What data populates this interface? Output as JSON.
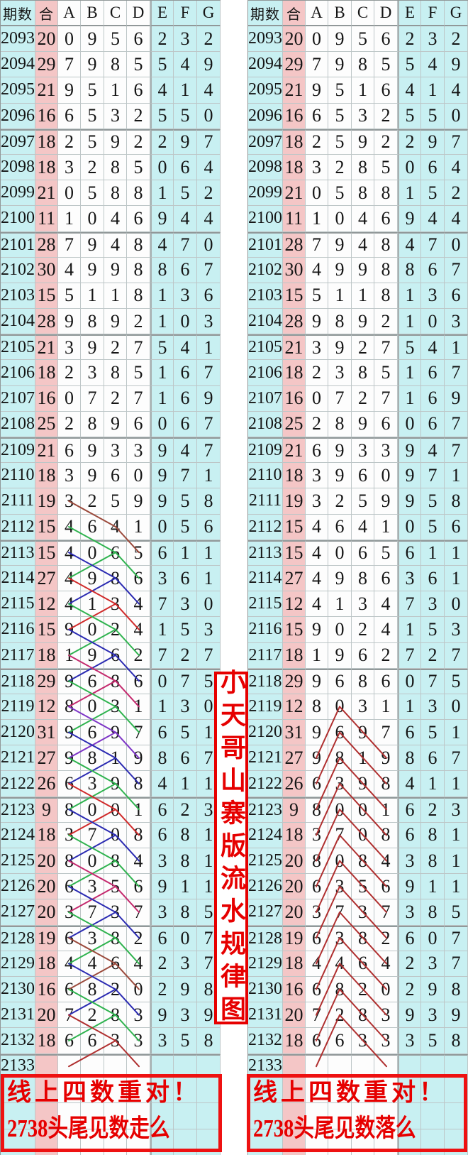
{
  "banner": {
    "text": "小天哥山寨版流水规律图"
  },
  "chart_data": {
    "type": "table",
    "title": "小天哥山寨版流水规律图",
    "columns": [
      "期数",
      "合",
      "A",
      "B",
      "C",
      "D",
      "E",
      "F",
      "G"
    ],
    "rows": [
      [
        "2093",
        "20",
        "0",
        "9",
        "5",
        "6",
        "2",
        "3",
        "2"
      ],
      [
        "2094",
        "29",
        "7",
        "9",
        "8",
        "5",
        "5",
        "4",
        "9"
      ],
      [
        "2095",
        "21",
        "9",
        "5",
        "1",
        "6",
        "4",
        "1",
        "4"
      ],
      [
        "2096",
        "16",
        "6",
        "5",
        "3",
        "2",
        "5",
        "5",
        "0"
      ],
      [
        "2097",
        "18",
        "2",
        "5",
        "9",
        "2",
        "2",
        "9",
        "7"
      ],
      [
        "2098",
        "18",
        "3",
        "2",
        "8",
        "5",
        "0",
        "6",
        "4"
      ],
      [
        "2099",
        "21",
        "0",
        "5",
        "8",
        "8",
        "1",
        "5",
        "2"
      ],
      [
        "2100",
        "11",
        "1",
        "0",
        "4",
        "6",
        "9",
        "4",
        "4"
      ],
      [
        "2101",
        "28",
        "7",
        "9",
        "4",
        "8",
        "4",
        "7",
        "0"
      ],
      [
        "2102",
        "30",
        "4",
        "9",
        "9",
        "8",
        "8",
        "6",
        "7"
      ],
      [
        "2103",
        "15",
        "5",
        "1",
        "1",
        "8",
        "1",
        "3",
        "6"
      ],
      [
        "2104",
        "28",
        "9",
        "8",
        "9",
        "2",
        "1",
        "0",
        "3"
      ],
      [
        "2105",
        "21",
        "3",
        "9",
        "2",
        "7",
        "5",
        "4",
        "1"
      ],
      [
        "2106",
        "18",
        "2",
        "3",
        "8",
        "5",
        "1",
        "6",
        "7"
      ],
      [
        "2107",
        "16",
        "0",
        "7",
        "2",
        "7",
        "1",
        "6",
        "9"
      ],
      [
        "2108",
        "25",
        "2",
        "8",
        "9",
        "6",
        "0",
        "6",
        "7"
      ],
      [
        "2109",
        "21",
        "6",
        "9",
        "3",
        "3",
        "9",
        "4",
        "7"
      ],
      [
        "2110",
        "18",
        "3",
        "9",
        "6",
        "0",
        "9",
        "7",
        "1"
      ],
      [
        "2111",
        "19",
        "3",
        "2",
        "5",
        "9",
        "9",
        "5",
        "8"
      ],
      [
        "2112",
        "15",
        "4",
        "6",
        "4",
        "1",
        "0",
        "5",
        "6"
      ],
      [
        "2113",
        "15",
        "4",
        "0",
        "6",
        "5",
        "6",
        "1",
        "1"
      ],
      [
        "2114",
        "27",
        "4",
        "9",
        "8",
        "6",
        "3",
        "6",
        "1"
      ],
      [
        "2115",
        "12",
        "4",
        "1",
        "3",
        "4",
        "7",
        "3",
        "0"
      ],
      [
        "2116",
        "15",
        "9",
        "0",
        "2",
        "4",
        "1",
        "5",
        "3"
      ],
      [
        "2117",
        "18",
        "1",
        "9",
        "6",
        "2",
        "7",
        "2",
        "7"
      ],
      [
        "2118",
        "29",
        "9",
        "6",
        "8",
        "6",
        "0",
        "7",
        "5"
      ],
      [
        "2119",
        "12",
        "8",
        "0",
        "3",
        "1",
        "1",
        "3",
        "0"
      ],
      [
        "2120",
        "31",
        "9",
        "6",
        "9",
        "7",
        "6",
        "5",
        "1"
      ],
      [
        "2121",
        "27",
        "9",
        "8",
        "1",
        "9",
        "8",
        "6",
        "7"
      ],
      [
        "2122",
        "26",
        "6",
        "3",
        "9",
        "8",
        "4",
        "1",
        "1"
      ],
      [
        "2123",
        "9",
        "8",
        "0",
        "0",
        "1",
        "6",
        "2",
        "3"
      ],
      [
        "2124",
        "18",
        "3",
        "7",
        "0",
        "8",
        "6",
        "8",
        "1"
      ],
      [
        "2125",
        "20",
        "8",
        "0",
        "8",
        "4",
        "3",
        "8",
        "1"
      ],
      [
        "2126",
        "20",
        "6",
        "3",
        "5",
        "6",
        "9",
        "1",
        "1"
      ],
      [
        "2127",
        "20",
        "3",
        "7",
        "3",
        "7",
        "3",
        "8",
        "5"
      ],
      [
        "2128",
        "19",
        "6",
        "3",
        "8",
        "2",
        "6",
        "0",
        "7"
      ],
      [
        "2129",
        "18",
        "4",
        "4",
        "6",
        "4",
        "2",
        "3",
        "7"
      ],
      [
        "2130",
        "16",
        "6",
        "8",
        "2",
        "0",
        "2",
        "9",
        "8"
      ],
      [
        "2131",
        "20",
        "7",
        "2",
        "8",
        "3",
        "9",
        "3",
        "9"
      ],
      [
        "2132",
        "18",
        "6",
        "6",
        "3",
        "3",
        "3",
        "5",
        "8"
      ],
      [
        "2133",
        "",
        "",
        "",
        "",
        "",
        "",
        "",
        ""
      ]
    ]
  },
  "footers": {
    "left": {
      "line1": "线上四数重对！",
      "line2": "2738头尾见数走么"
    },
    "right": {
      "line1": "线上四数重对！",
      "line2": "2738头尾见数落么"
    }
  },
  "layout": {
    "heavy_rows": [
      2097,
      2101,
      2105,
      2109,
      2113,
      2118,
      2123,
      2128,
      2133
    ]
  },
  "colors": {
    "cyan": "#c8f0f2",
    "pink": "#f4c6c6",
    "white": "#fdfdfd",
    "grid": "#bdc6c7",
    "grid_heavy": "#919899",
    "red": "#e60000",
    "line_green": "#2fb34f",
    "line_blue": "#2b2bb2",
    "line_red": "#d02a2a",
    "line_crimson": "#c42a6e",
    "line_purple": "#7d35c6",
    "line_brown": "#9b4a3c",
    "line_darkred": "#b03030"
  },
  "overlay": {
    "left_lines": [
      {
        "color": "#9b4a3c",
        "segments": [
          [
            "A",
            2111,
            "C",
            2112
          ],
          [
            "C",
            2112,
            "D",
            2113
          ]
        ]
      },
      {
        "color": "#2fb34f",
        "segments": [
          [
            "A",
            2112,
            "C",
            2113
          ],
          [
            "C",
            2113,
            "A",
            2114
          ],
          [
            "C",
            2113,
            "D",
            2114
          ]
        ]
      },
      {
        "color": "#2b2bb2",
        "segments": [
          [
            "A",
            2113,
            "C",
            2114
          ],
          [
            "C",
            2114,
            "A",
            2115
          ],
          [
            "C",
            2114,
            "D",
            2115
          ]
        ]
      },
      {
        "color": "#d02a2a",
        "segments": [
          [
            "A",
            2114,
            "C",
            2115
          ],
          [
            "C",
            2115,
            "A",
            2116
          ],
          [
            "C",
            2115,
            "D",
            2116
          ]
        ]
      },
      {
        "color": "#2fb34f",
        "segments": [
          [
            "A",
            2115,
            "C",
            2116
          ],
          [
            "C",
            2116,
            "A",
            2117
          ],
          [
            "C",
            2116,
            "D",
            2117
          ]
        ]
      },
      {
        "color": "#2b2bb2",
        "segments": [
          [
            "A",
            2116,
            "C",
            2117
          ],
          [
            "C",
            2117,
            "A",
            2118
          ],
          [
            "C",
            2117,
            "D",
            2118
          ]
        ]
      },
      {
        "color": "#c42a6e",
        "segments": [
          [
            "A",
            2117,
            "C",
            2118
          ],
          [
            "C",
            2118,
            "A",
            2119
          ],
          [
            "C",
            2118,
            "D",
            2119
          ]
        ]
      },
      {
        "color": "#2fb34f",
        "segments": [
          [
            "A",
            2118,
            "C",
            2119
          ],
          [
            "C",
            2119,
            "A",
            2120
          ],
          [
            "C",
            2119,
            "D",
            2120
          ]
        ]
      },
      {
        "color": "#7d35c6",
        "segments": [
          [
            "A",
            2119,
            "C",
            2120
          ],
          [
            "C",
            2120,
            "A",
            2121
          ],
          [
            "C",
            2120,
            "D",
            2121
          ]
        ]
      },
      {
        "color": "#2b2bb2",
        "segments": [
          [
            "A",
            2120,
            "C",
            2121
          ],
          [
            "C",
            2121,
            "A",
            2122
          ],
          [
            "C",
            2121,
            "D",
            2122
          ]
        ]
      },
      {
        "color": "#2fb34f",
        "segments": [
          [
            "A",
            2121,
            "C",
            2122
          ],
          [
            "C",
            2122,
            "A",
            2123
          ],
          [
            "C",
            2122,
            "D",
            2123
          ]
        ]
      },
      {
        "color": "#d02a2a",
        "segments": [
          [
            "A",
            2122,
            "C",
            2123
          ],
          [
            "C",
            2123,
            "A",
            2124
          ],
          [
            "C",
            2123,
            "D",
            2124
          ]
        ]
      },
      {
        "color": "#2b2bb2",
        "segments": [
          [
            "A",
            2123,
            "C",
            2124
          ],
          [
            "C",
            2124,
            "A",
            2125
          ],
          [
            "C",
            2124,
            "D",
            2125
          ]
        ]
      },
      {
        "color": "#2fb34f",
        "segments": [
          [
            "A",
            2124,
            "C",
            2125
          ],
          [
            "C",
            2125,
            "A",
            2126
          ],
          [
            "C",
            2125,
            "D",
            2126
          ]
        ]
      },
      {
        "color": "#c42a6e",
        "segments": [
          [
            "A",
            2125,
            "C",
            2126
          ],
          [
            "C",
            2126,
            "A",
            2127
          ],
          [
            "C",
            2126,
            "D",
            2127
          ]
        ]
      },
      {
        "color": "#2b2bb2",
        "segments": [
          [
            "A",
            2126,
            "C",
            2127
          ],
          [
            "C",
            2127,
            "A",
            2128
          ],
          [
            "C",
            2127,
            "D",
            2128
          ]
        ]
      },
      {
        "color": "#2fb34f",
        "segments": [
          [
            "A",
            2127,
            "C",
            2128
          ],
          [
            "C",
            2128,
            "A",
            2129
          ],
          [
            "C",
            2128,
            "D",
            2129
          ]
        ]
      },
      {
        "color": "#9b4a3c",
        "segments": [
          [
            "A",
            2128,
            "C",
            2129
          ],
          [
            "C",
            2129,
            "A",
            2130
          ],
          [
            "C",
            2129,
            "D",
            2130
          ]
        ]
      },
      {
        "color": "#2b2bb2",
        "segments": [
          [
            "A",
            2129,
            "C",
            2130
          ],
          [
            "C",
            2130,
            "A",
            2131
          ],
          [
            "C",
            2130,
            "D",
            2131
          ]
        ]
      },
      {
        "color": "#2fb34f",
        "segments": [
          [
            "A",
            2130,
            "C",
            2131
          ],
          [
            "C",
            2131,
            "A",
            2132
          ],
          [
            "C",
            2131,
            "D",
            2132
          ]
        ]
      },
      {
        "color": "#b03030",
        "segments": [
          [
            "A",
            2131,
            "C",
            2132
          ],
          [
            "C",
            2132,
            "A",
            2133
          ],
          [
            "C",
            2132,
            "D",
            2133
          ]
        ]
      }
    ],
    "right_lines": [
      {
        "color": "#b03030",
        "segments": [
          [
            "A",
            2121,
            "B",
            2119
          ],
          [
            "B",
            2119,
            "D",
            2121
          ]
        ]
      },
      {
        "color": "#b03030",
        "segments": [
          [
            "A",
            2122,
            "B",
            2120
          ],
          [
            "B",
            2120,
            "D",
            2122
          ]
        ]
      },
      {
        "color": "#b03030",
        "segments": [
          [
            "A",
            2123,
            "B",
            2121
          ],
          [
            "B",
            2121,
            "D",
            2123
          ]
        ]
      },
      {
        "color": "#b03030",
        "segments": [
          [
            "A",
            2124,
            "B",
            2122
          ],
          [
            "B",
            2122,
            "D",
            2124
          ]
        ]
      },
      {
        "color": "#b03030",
        "segments": [
          [
            "A",
            2125,
            "B",
            2123
          ],
          [
            "B",
            2123,
            "D",
            2125
          ]
        ]
      },
      {
        "color": "#b03030",
        "segments": [
          [
            "A",
            2126,
            "B",
            2124
          ],
          [
            "B",
            2124,
            "D",
            2126
          ]
        ]
      },
      {
        "color": "#b03030",
        "segments": [
          [
            "A",
            2127,
            "B",
            2125
          ],
          [
            "B",
            2125,
            "D",
            2127
          ]
        ]
      },
      {
        "color": "#b03030",
        "segments": [
          [
            "A",
            2128,
            "B",
            2126
          ],
          [
            "B",
            2126,
            "D",
            2128
          ]
        ]
      },
      {
        "color": "#b03030",
        "segments": [
          [
            "A",
            2129,
            "B",
            2127
          ],
          [
            "B",
            2127,
            "D",
            2129
          ]
        ]
      },
      {
        "color": "#b03030",
        "segments": [
          [
            "A",
            2130,
            "B",
            2128
          ],
          [
            "B",
            2128,
            "D",
            2130
          ]
        ]
      },
      {
        "color": "#b03030",
        "segments": [
          [
            "A",
            2131,
            "B",
            2129
          ],
          [
            "B",
            2129,
            "D",
            2131
          ]
        ]
      },
      {
        "color": "#b03030",
        "segments": [
          [
            "A",
            2132,
            "B",
            2130
          ],
          [
            "B",
            2130,
            "D",
            2132
          ]
        ]
      },
      {
        "color": "#b03030",
        "segments": [
          [
            "A",
            2133,
            "B",
            2131
          ],
          [
            "B",
            2131,
            "D",
            2133
          ]
        ]
      }
    ]
  }
}
